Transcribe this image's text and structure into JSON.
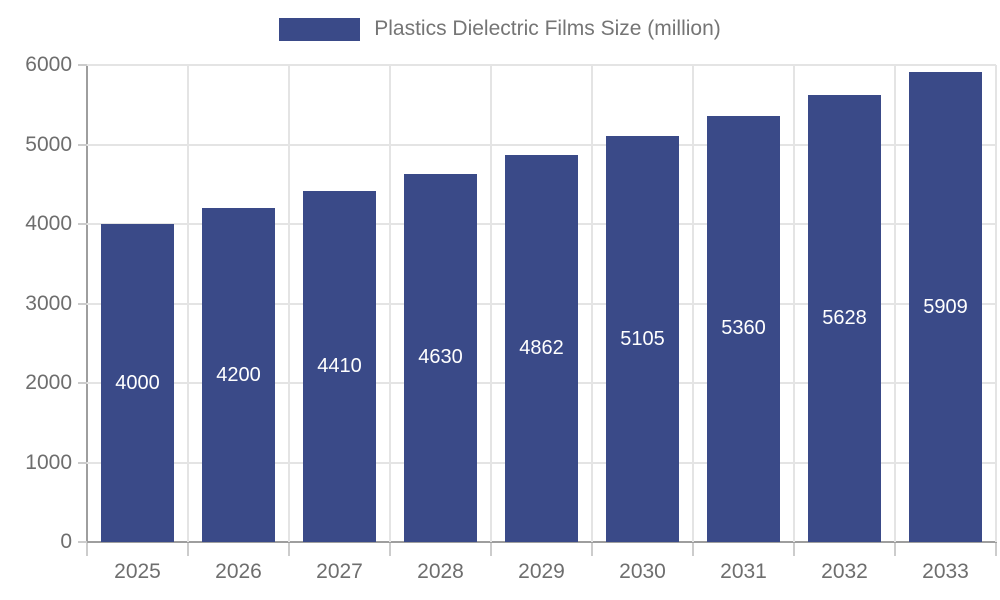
{
  "legend": {
    "label": "Plastics Dielectric Films Size (million)"
  },
  "chart_data": {
    "type": "bar",
    "categories": [
      "2025",
      "2026",
      "2027",
      "2028",
      "2029",
      "2030",
      "2031",
      "2032",
      "2033"
    ],
    "values": [
      4000,
      4200,
      4410,
      4630,
      4862,
      5105,
      5360,
      5628,
      5909
    ],
    "series_name": "Plastics Dielectric Films Size (million)",
    "title": "",
    "xlabel": "",
    "ylabel": "",
    "ylim": [
      0,
      6000
    ],
    "yticks": [
      0,
      1000,
      2000,
      3000,
      4000,
      5000,
      6000
    ],
    "grid": true,
    "legend_position": "top",
    "bar_labels_visible": true
  },
  "colors": {
    "bar": "#3A4A88",
    "grid": "#E4E4E4",
    "axis": "#9E9E9E",
    "tick": "#CCCCCC",
    "tick_label": "#6E6E6E",
    "legend_text": "#757575",
    "bar_label": "#FFFFFF",
    "background": "#FFFFFF"
  }
}
